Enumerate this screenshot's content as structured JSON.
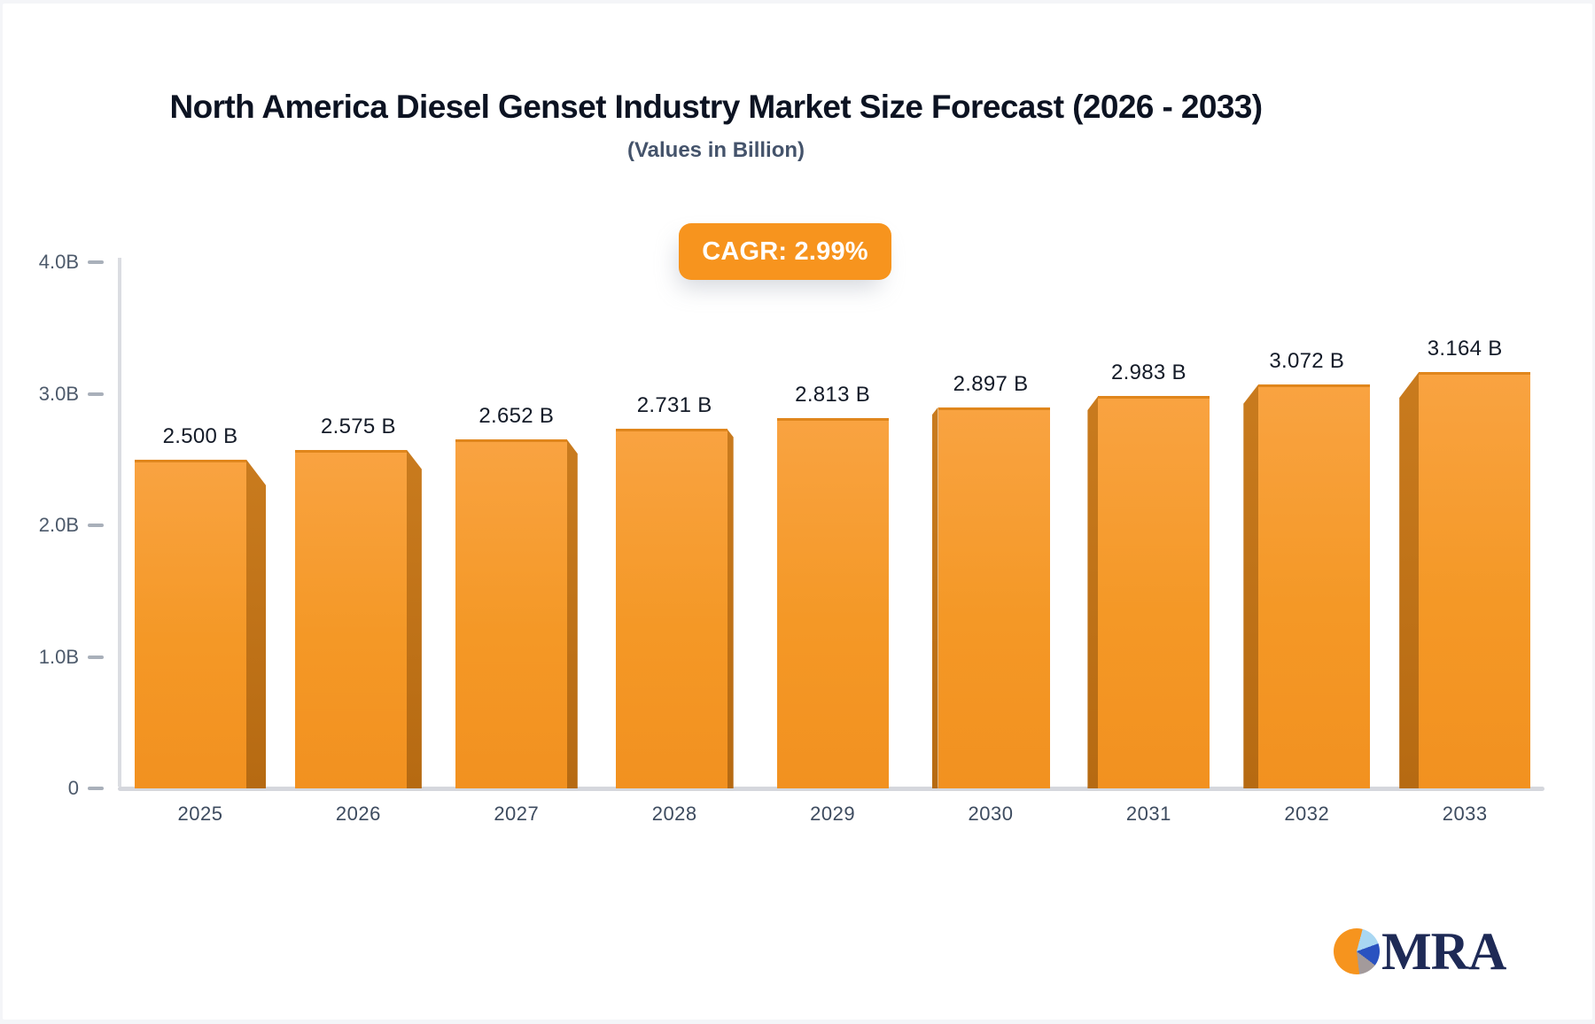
{
  "header": {
    "title": "North America Diesel Genset Industry Market Size Forecast (2026 - 2033)",
    "subtitle": "(Values in Billion)"
  },
  "badge": {
    "label": "CAGR: 2.99%",
    "background": "#F7941E",
    "text_color": "#FFFFFF"
  },
  "chart_data": {
    "type": "bar",
    "title": "North America Diesel Genset Industry Market Size Forecast (2026 - 2033)",
    "subtitle": "(Values in Billion)",
    "categories": [
      "2025",
      "2026",
      "2027",
      "2028",
      "2029",
      "2030",
      "2031",
      "2032",
      "2033"
    ],
    "values": [
      2.5,
      2.575,
      2.652,
      2.731,
      2.813,
      2.897,
      2.983,
      3.072,
      3.164
    ],
    "value_labels": [
      "2.500 B",
      "2.575 B",
      "2.652 B",
      "2.731 B",
      "2.813 B",
      "2.897 B",
      "2.983 B",
      "3.072 B",
      "3.164 B"
    ],
    "unit": "Billion",
    "cagr_annotation": "CAGR: 2.99%",
    "ylim": [
      0,
      4.0
    ],
    "yticks": [
      {
        "value": 4.0,
        "label": "4.0B"
      },
      {
        "value": 3.0,
        "label": "3.0B"
      },
      {
        "value": 2.0,
        "label": "2.0B"
      },
      {
        "value": 1.0,
        "label": "1.0B"
      },
      {
        "value": 0.0,
        "label": "0"
      }
    ],
    "grid": false,
    "legend": null,
    "bar_color_top": "#F9A341",
    "bar_color_bottom": "#F29120",
    "bar_side_color": "#B66A12",
    "axis_color": "#D5D7DD",
    "label_color": "#141B28"
  },
  "logo": {
    "text": "MRA",
    "pie_colors": [
      "#F6941E",
      "#A9D7F2",
      "#2A52C0",
      "#A39A9B"
    ]
  }
}
